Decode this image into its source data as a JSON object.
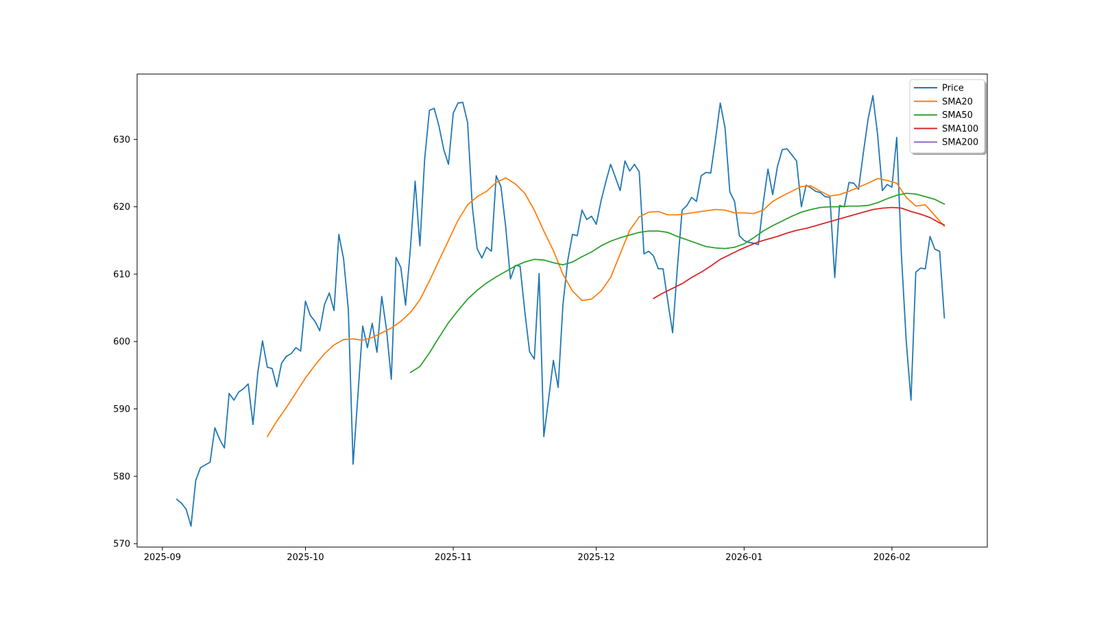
{
  "chart_data": {
    "type": "line",
    "title": "",
    "xlabel": "",
    "ylabel": "",
    "grid": false,
    "x_axis": {
      "epoch": "2025-09-01",
      "tick_days": [
        0,
        30,
        61,
        91,
        122,
        153
      ],
      "tick_labels": [
        "2025-09",
        "2025-10",
        "2025-11",
        "2025-12",
        "2026-01",
        "2026-02"
      ],
      "range_days": [
        -5.3,
        173.0
      ]
    },
    "y_axis": {
      "ticks": [
        570,
        580,
        590,
        600,
        610,
        620,
        630
      ],
      "range": [
        569.5,
        639.7
      ]
    },
    "legend": {
      "position": "upper right",
      "entries": [
        {
          "label": "Price",
          "color": "#1f77b4"
        },
        {
          "label": "SMA20",
          "color": "#ff7f0e"
        },
        {
          "label": "SMA50",
          "color": "#2ca02c"
        },
        {
          "label": "SMA100",
          "color": "#d62728"
        },
        {
          "label": "SMA200",
          "color": "#9467bd"
        }
      ]
    },
    "series": [
      {
        "name": "Price",
        "color": "#1f77b4",
        "start_date": "2025-09-04",
        "day_start": 3,
        "freq": "daily",
        "daily_values": [
          576.6,
          576.0,
          575.1,
          572.6,
          579.4,
          581.3,
          581.7,
          582.1,
          587.2,
          585.5,
          584.2,
          592.3,
          591.3,
          592.5,
          593.0,
          593.7,
          587.7,
          595.4,
          600.1,
          596.2,
          596.0,
          593.3,
          596.8,
          597.8,
          598.2,
          599.1,
          598.6,
          606.0,
          603.9,
          603.0,
          601.6,
          605.5,
          607.2,
          604.6,
          615.9,
          612.3,
          604.7,
          581.8,
          592.0,
          602.3,
          599.1,
          602.7,
          598.4,
          606.7,
          601.8,
          594.4,
          612.5,
          611.0,
          605.4,
          613.7,
          623.8,
          614.2,
          627.1,
          634.3,
          634.6,
          632.0,
          628.5,
          626.3,
          633.9,
          635.4,
          635.5,
          632.5,
          620.0,
          613.8,
          612.4,
          614.0,
          613.4,
          624.6,
          623.0,
          617.0,
          609.3,
          611.3,
          611.2,
          604.5,
          598.5,
          597.4,
          610.1,
          585.9,
          591.5,
          597.2,
          593.2,
          605.4,
          612.0,
          615.9,
          615.7,
          619.5,
          618.1,
          618.6,
          617.4,
          620.9,
          623.7,
          626.3,
          624.4,
          622.4,
          626.8,
          625.3,
          626.3,
          625.2,
          613.0,
          613.4,
          612.7,
          610.8,
          610.8,
          606.0,
          601.3,
          611.0,
          619.5,
          620.2,
          621.4,
          620.8,
          624.6,
          625.1,
          625.0,
          630.0,
          635.4,
          631.7,
          622.2,
          620.8,
          615.7,
          615.0,
          614.7,
          614.6,
          614.4,
          620.5,
          625.6,
          621.8,
          626.0,
          628.5,
          628.6,
          627.7,
          626.8,
          620.0,
          623.2,
          622.8,
          622.3,
          622.1,
          621.5,
          621.4,
          609.5,
          620.2,
          620.0,
          623.6,
          623.5,
          622.6,
          628.0,
          633.0,
          636.5,
          630.7,
          622.4,
          623.3,
          622.9,
          630.3,
          612.7,
          600.0,
          591.3,
          610.3,
          610.9,
          610.8,
          615.6,
          613.7,
          613.4,
          603.5
        ]
      },
      {
        "name": "SMA20",
        "color": "#ff7f0e",
        "days": [
          22,
          24,
          26,
          28,
          30,
          32,
          34,
          36,
          38,
          40,
          42,
          44,
          46,
          48,
          50,
          52,
          54,
          56,
          58,
          60,
          62,
          64,
          66,
          68,
          70,
          72,
          74,
          76,
          78,
          80,
          82,
          84,
          86,
          88,
          90,
          92,
          94,
          96,
          98,
          100,
          102,
          104,
          106,
          108,
          110,
          112,
          114,
          116,
          118,
          120,
          122,
          124,
          126,
          128,
          130,
          132,
          134,
          136,
          138,
          140,
          142,
          144,
          146,
          148,
          150,
          152,
          154,
          156,
          158,
          160,
          162,
          164
        ],
        "values": [
          585.9,
          588.2,
          590.2,
          592.4,
          594.6,
          596.5,
          598.2,
          599.5,
          600.3,
          600.4,
          600.2,
          600.6,
          601.3,
          602.0,
          603.0,
          604.3,
          606.2,
          609.0,
          612.0,
          615.0,
          618.0,
          620.3,
          621.5,
          622.3,
          623.6,
          624.3,
          623.4,
          622.0,
          619.5,
          616.4,
          613.5,
          610.0,
          607.5,
          606.1,
          606.3,
          607.5,
          609.5,
          613.0,
          616.5,
          618.5,
          619.2,
          619.3,
          618.8,
          618.8,
          619.0,
          619.2,
          619.4,
          619.6,
          619.5,
          619.1,
          619.1,
          619.0,
          619.5,
          620.8,
          621.6,
          622.3,
          623.0,
          623.1,
          622.3,
          621.6,
          621.8,
          622.3,
          622.9,
          623.5,
          624.2,
          623.9,
          623.5,
          621.4,
          620.1,
          620.3,
          618.7,
          617.1
        ]
      },
      {
        "name": "SMA50",
        "color": "#2ca02c",
        "days": [
          52,
          54,
          56,
          58,
          60,
          62,
          64,
          66,
          68,
          70,
          72,
          74,
          76,
          78,
          80,
          82,
          84,
          86,
          88,
          90,
          92,
          94,
          96,
          98,
          100,
          102,
          104,
          106,
          108,
          110,
          112,
          114,
          116,
          118,
          120,
          122,
          124,
          126,
          128,
          130,
          132,
          134,
          136,
          138,
          140,
          142,
          144,
          146,
          148,
          150,
          152,
          154,
          156,
          158,
          160,
          162,
          164
        ],
        "values": [
          595.4,
          596.3,
          598.3,
          600.6,
          602.8,
          604.6,
          606.3,
          607.6,
          608.7,
          609.6,
          610.4,
          611.2,
          611.8,
          612.2,
          612.1,
          611.7,
          611.4,
          611.8,
          612.6,
          613.3,
          614.2,
          614.9,
          615.4,
          615.8,
          616.2,
          616.4,
          616.4,
          616.2,
          615.6,
          615.1,
          614.6,
          614.1,
          613.9,
          613.8,
          614.0,
          614.5,
          615.4,
          616.4,
          617.2,
          617.9,
          618.6,
          619.2,
          619.6,
          619.9,
          620.0,
          620.0,
          620.1,
          620.1,
          620.2,
          620.6,
          621.2,
          621.7,
          622.0,
          621.9,
          621.5,
          621.1,
          620.4
        ]
      },
      {
        "name": "SMA100",
        "color": "#d62728",
        "days": [
          103,
          105,
          107,
          109,
          111,
          113,
          115,
          117,
          119,
          121,
          123,
          125,
          127,
          129,
          131,
          133,
          135,
          137,
          139,
          141,
          143,
          145,
          147,
          149,
          151,
          153,
          155,
          157,
          159,
          161,
          163,
          164
        ],
        "values": [
          606.4,
          607.2,
          607.9,
          608.6,
          609.5,
          610.3,
          611.2,
          612.2,
          612.9,
          613.6,
          614.2,
          614.8,
          615.2,
          615.6,
          616.1,
          616.5,
          616.8,
          617.2,
          617.6,
          618.0,
          618.4,
          618.8,
          619.2,
          619.6,
          619.8,
          619.9,
          619.8,
          619.3,
          618.9,
          618.4,
          617.6,
          617.3
        ]
      },
      {
        "name": "SMA200",
        "color": "#9467bd",
        "days": [],
        "values": []
      }
    ]
  }
}
